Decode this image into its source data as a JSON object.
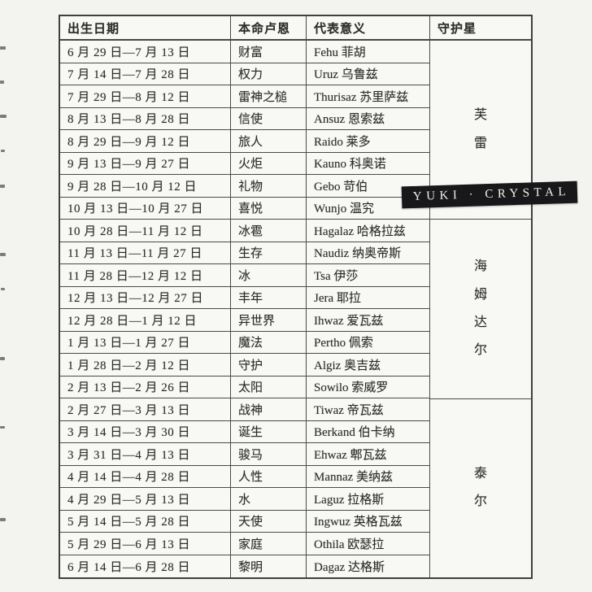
{
  "watermark": {
    "text": "YUKI · CRYSTAL",
    "bar_color": "#18181a",
    "text_color": "#f2f1ec"
  },
  "table": {
    "headers": [
      "出生日期",
      "本命卢恩",
      "代表意义",
      "守护星"
    ],
    "rows": [
      {
        "date": "6 月 29 日—7 月 13 日",
        "rune": "财富",
        "meaning": "Fehu 菲胡"
      },
      {
        "date": "7 月 14 日—7 月 28 日",
        "rune": "权力",
        "meaning": "Uruz 乌鲁兹"
      },
      {
        "date": "7 月 29 日—8 月 12 日",
        "rune": "雷神之槌",
        "meaning": "Thurisaz 苏里萨兹"
      },
      {
        "date": "8 月 13 日—8 月 28 日",
        "rune": "信使",
        "meaning": "Ansuz 恩索兹"
      },
      {
        "date": "8 月 29 日—9 月 12 日",
        "rune": "旅人",
        "meaning": "Raido 莱多"
      },
      {
        "date": "9 月 13 日—9 月 27 日",
        "rune": "火炬",
        "meaning": "Kauno 科奥诺"
      },
      {
        "date": "9 月 28 日—10 月 12 日",
        "rune": "礼物",
        "meaning": "Gebo 苛伯"
      },
      {
        "date": "10 月 13 日—10 月 27 日",
        "rune": "喜悦",
        "meaning": "Wunjo 温究"
      },
      {
        "date": "10 月 28 日—11 月 12 日",
        "rune": "冰雹",
        "meaning": "Hagalaz 哈格拉兹"
      },
      {
        "date": "11 月 13 日—11 月 27 日",
        "rune": "生存",
        "meaning": "Naudiz 纳奥帝斯"
      },
      {
        "date": "11 月 28 日—12 月 12 日",
        "rune": "冰",
        "meaning": "Tsa 伊莎"
      },
      {
        "date": "12 月 13 日—12 月 27 日",
        "rune": "丰年",
        "meaning": "Jera 耶拉"
      },
      {
        "date": "12 月 28 日—1 月 12 日",
        "rune": "异世界",
        "meaning": "Ihwaz 爱瓦兹"
      },
      {
        "date": "1 月 13 日—1 月 27 日",
        "rune": "魔法",
        "meaning": "Pertho 佩索"
      },
      {
        "date": "1 月 28 日—2 月 12 日",
        "rune": "守护",
        "meaning": "Algiz 奥吉兹"
      },
      {
        "date": "2 月 13 日—2 月 26 日",
        "rune": "太阳",
        "meaning": "Sowilo 索威罗"
      },
      {
        "date": "2 月 27 日—3 月 13 日",
        "rune": "战神",
        "meaning": "Tiwaz 帝瓦兹"
      },
      {
        "date": "3 月 14 日—3 月 30 日",
        "rune": "诞生",
        "meaning": "Berkand 伯卡纳"
      },
      {
        "date": "3 月 31 日—4 月 13 日",
        "rune": "骏马",
        "meaning": "Ehwaz 郫瓦兹"
      },
      {
        "date": "4 月 14 日—4 月 28 日",
        "rune": "人性",
        "meaning": "Mannaz 美纳兹"
      },
      {
        "date": "4 月 29 日—5 月 13 日",
        "rune": "水",
        "meaning": "Laguz 拉格斯"
      },
      {
        "date": "5 月 14 日—5 月 28 日",
        "rune": "天使",
        "meaning": "Ingwuz 英格瓦兹"
      },
      {
        "date": "5 月 29 日—6 月 13 日",
        "rune": "家庭",
        "meaning": "Othila 欧瑟拉"
      },
      {
        "date": "6 月 14 日—6 月 28 日",
        "rune": "黎明",
        "meaning": "Dagaz 达格斯"
      }
    ],
    "guardians": [
      {
        "name": "芙雷",
        "row_span": 8
      },
      {
        "name": "海姆达尔",
        "row_span": 8
      },
      {
        "name": "泰尔",
        "row_span": 8
      }
    ]
  }
}
